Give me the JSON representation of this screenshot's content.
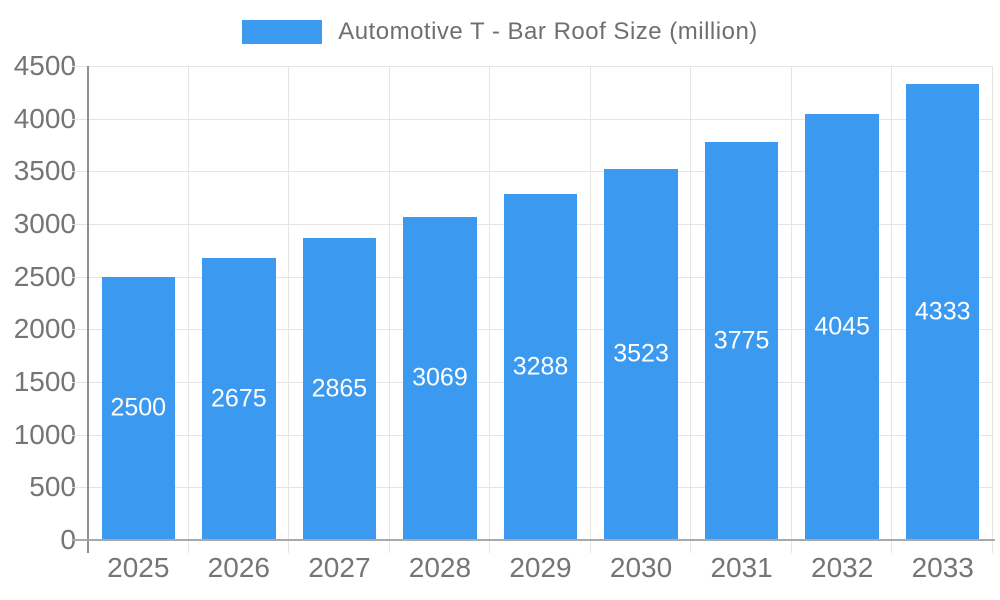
{
  "chart_data": {
    "type": "bar",
    "title": "Automotive T - Bar Roof Size (million)",
    "legend": {
      "label": "Automotive T - Bar Roof Size (million)",
      "swatch_color": "#3b99f0",
      "position": "top"
    },
    "categories": [
      "2025",
      "2026",
      "2027",
      "2028",
      "2029",
      "2030",
      "2031",
      "2032",
      "2033"
    ],
    "values": [
      2500,
      2675,
      2865,
      3069,
      3288,
      3523,
      3775,
      4045,
      4333
    ],
    "xlabel": "",
    "ylabel": "",
    "ylim": [
      0,
      4500
    ],
    "ytick_step": 500,
    "grid": "on",
    "bar_value_labels_visible": true,
    "colors": {
      "bar": "#3b99f0",
      "bar_label_text": "#ffffff",
      "grid": "#e5e5e5",
      "y_axis_line": "#8f8f8f",
      "x_axis_line": "#a9a9a9",
      "axis_label_text": "#757575",
      "legend_text": "#6f6f6f",
      "background": "#ffffff"
    }
  }
}
